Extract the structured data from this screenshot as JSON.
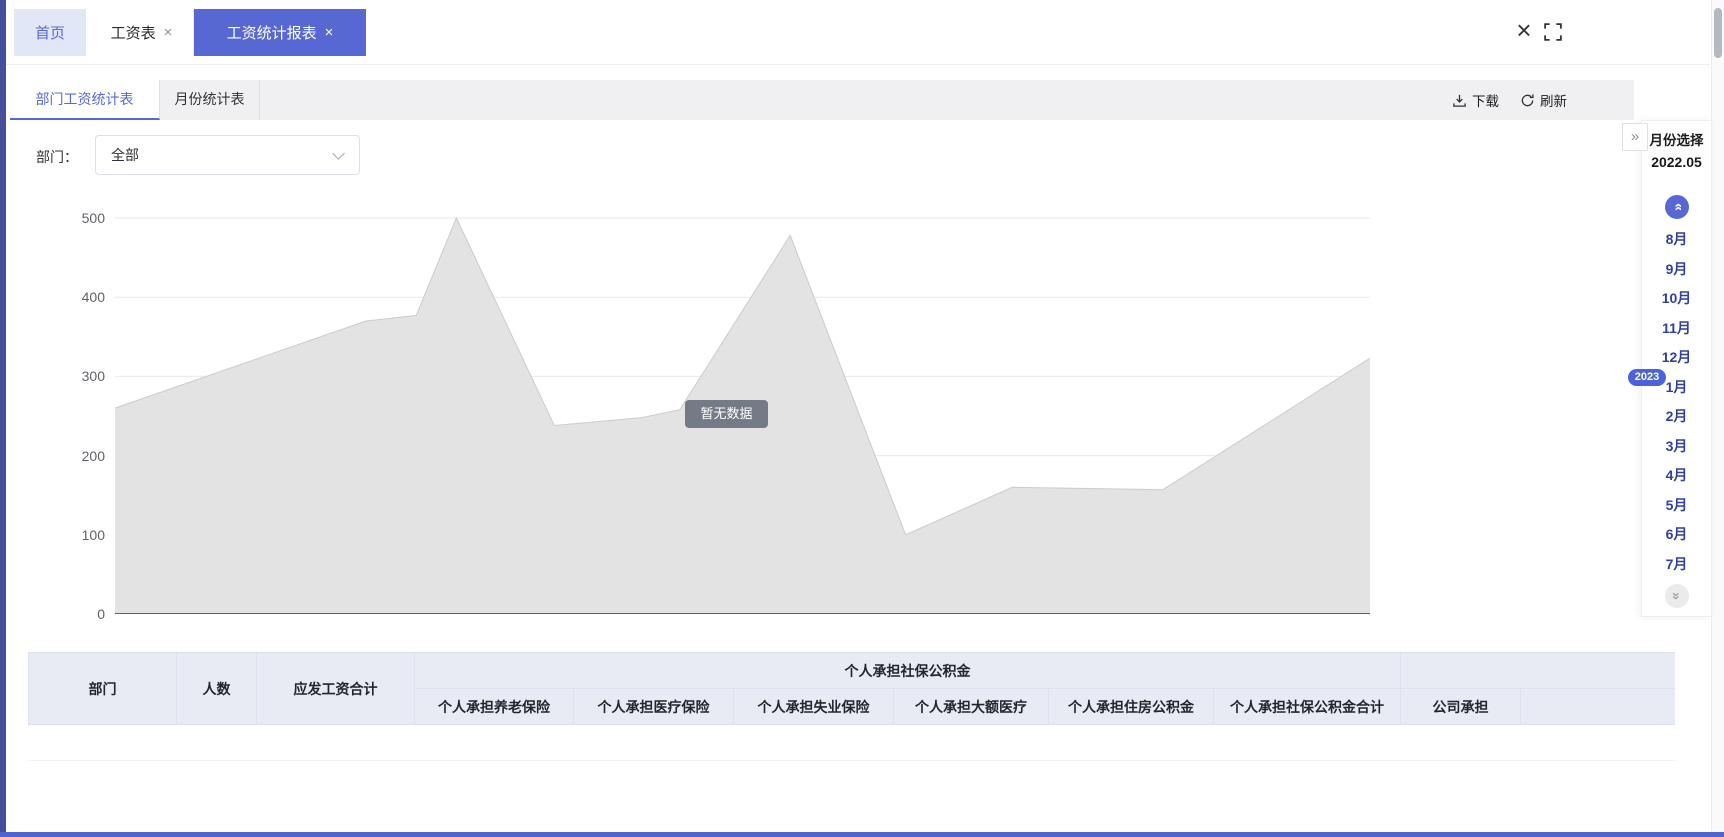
{
  "colors": {
    "accent": "#5868d2",
    "area_fill": "#e3e3e3",
    "area_stroke": "#cbcbcb",
    "badge_bg": "#747b87"
  },
  "icons": {
    "close": "×",
    "collapse": "»",
    "double_chevron": "»"
  },
  "topbar": {
    "home_tab": "首页",
    "tabs": [
      {
        "label": "工资表",
        "active": false
      },
      {
        "label": "工资统计报表",
        "active": true
      }
    ]
  },
  "sub_tabs": [
    {
      "label": "部门工资统计表",
      "active": true
    },
    {
      "label": "月份统计表",
      "active": false
    }
  ],
  "toolbar": {
    "download": "下载",
    "refresh": "刷新"
  },
  "filter": {
    "label": "部门：",
    "value": "全部"
  },
  "chart_data": {
    "type": "area",
    "title": "",
    "xlabel": "",
    "ylabel": "",
    "ylim": [
      0,
      500
    ],
    "yticks": [
      0,
      100,
      200,
      300,
      400,
      500
    ],
    "grid": true,
    "legend": false,
    "no_data_label": "暂无数据",
    "area_fill": "#e3e3e3",
    "area_stroke": "#cbcbcb",
    "series": [
      {
        "name": "",
        "x_fractions": [
          0.0,
          0.2,
          0.24,
          0.272,
          0.35,
          0.42,
          0.45,
          0.538,
          0.63,
          0.715,
          0.835,
          1.0
        ],
        "values": [
          260,
          370,
          377,
          500,
          238,
          248,
          258,
          478,
          100,
          160,
          157,
          323
        ]
      }
    ]
  },
  "month_panel": {
    "title": "月份选择",
    "current": "2022.05",
    "year_badge": "2023",
    "months": [
      "8月",
      "9月",
      "10月",
      "11月",
      "12月",
      "1月",
      "2月",
      "3月",
      "4月",
      "5月",
      "6月",
      "7月"
    ]
  },
  "table": {
    "columns_left": [
      "部门",
      "人数",
      "应发工资合计"
    ],
    "group_header": "个人承担社保公积金",
    "sub_columns": [
      "个人承担养老保险",
      "个人承担医疗保险",
      "个人承担失业保险",
      "个人承担大额医疗",
      "个人承担住房公积金",
      "个人承担社保公积金合计"
    ],
    "last_column": "公司承担"
  }
}
